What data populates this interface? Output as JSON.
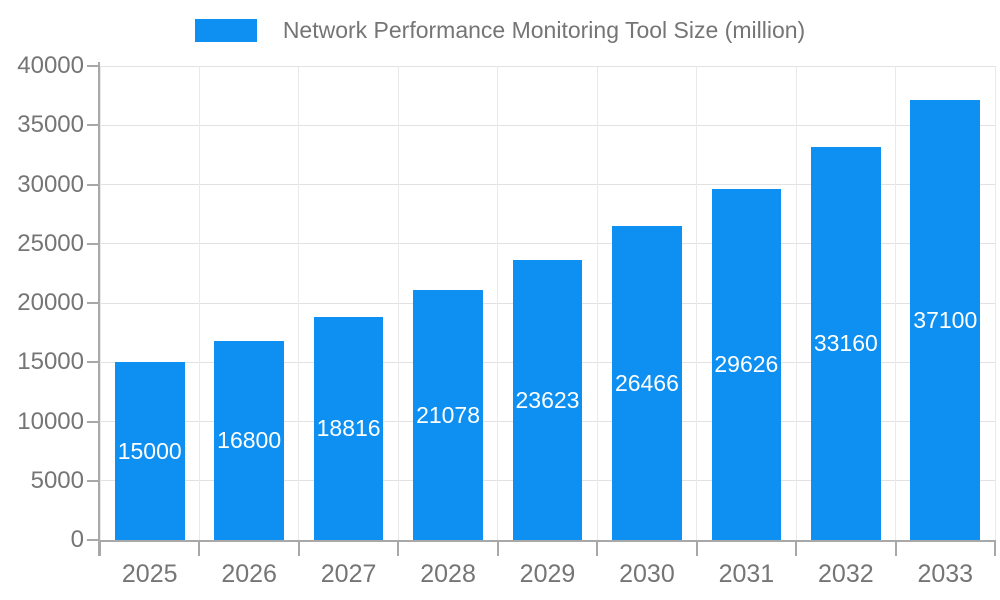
{
  "legend": {
    "label": "Network Performance Monitoring Tool Size (million)"
  },
  "colors": {
    "bar": "#0d90f2",
    "bar_label": "#ffffff",
    "axis_label": "#757575",
    "legend_label": "#757575",
    "axis_line": "#a8a8a8",
    "h_gridline": "#e2e2e2",
    "v_gridline": "#e9e9e9",
    "background": "#ffffff"
  },
  "chart_data": {
    "type": "bar",
    "title": "Network Performance Monitoring Tool Size (million)",
    "categories": [
      "2025",
      "2026",
      "2027",
      "2028",
      "2029",
      "2030",
      "2031",
      "2032",
      "2033"
    ],
    "values": [
      15000,
      16800,
      18816,
      21078,
      23623,
      26466,
      29626,
      33160,
      37100
    ],
    "xlabel": "",
    "ylabel": "",
    "ylim": [
      0,
      40000
    ],
    "ytick_step": 5000,
    "ytick_labels": [
      "0",
      "5000",
      "10000",
      "15000",
      "20000",
      "25000",
      "30000",
      "35000",
      "40000"
    ],
    "grid": true,
    "legend_position": "top-center",
    "bar_width_fraction": 0.7,
    "value_labels": "inside-center-white"
  }
}
